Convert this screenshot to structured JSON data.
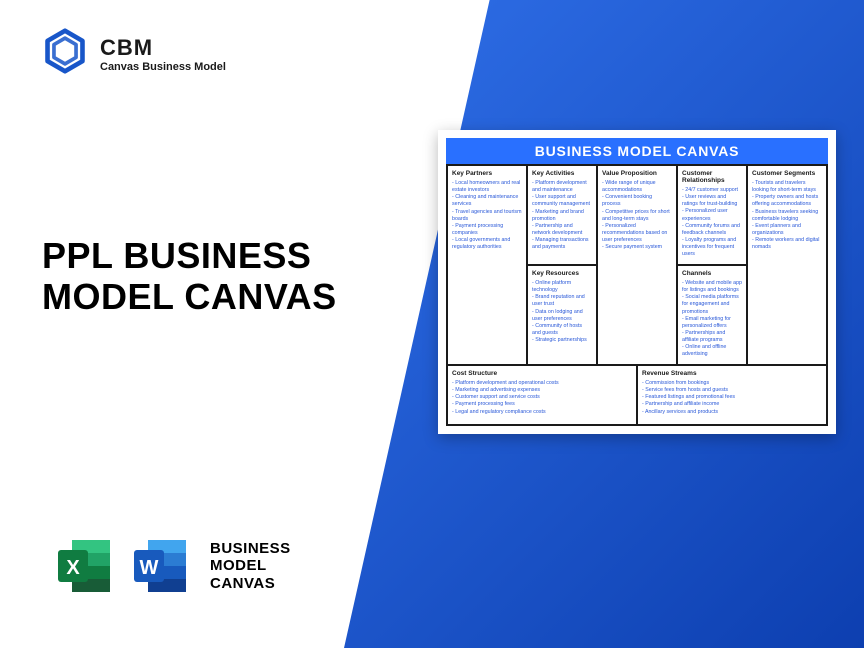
{
  "logo": {
    "title": "CBM",
    "subtitle": "Canvas Business Model"
  },
  "heading": {
    "line1": "PPL BUSINESS",
    "line2": "MODEL CANVAS"
  },
  "bottom_label": {
    "line1": "BUSINESS",
    "line2": "MODEL",
    "line3": "CANVAS"
  },
  "colors": {
    "brand_blue": "#2970ff",
    "link_blue": "#2958d8",
    "excel_dark": "#107c41",
    "excel_light": "#21a366",
    "word_dark": "#185abd",
    "word_light": "#41a5ee",
    "logo_hex": "#1856c9"
  },
  "canvas": {
    "title": "BUSINESS MODEL CANVAS",
    "key_partners": {
      "head": "Key Partners",
      "items": [
        "Local homeowners and real estate investors",
        "Cleaning and maintenance services",
        "Travel agencies and tourism boards",
        "Payment processing companies",
        "Local governments and regulatory authorities"
      ]
    },
    "key_activities": {
      "head": "Key Activities",
      "items": [
        "Platform development and maintenance",
        "User support and community management",
        "Marketing and brand promotion",
        "Partnership and network development",
        "Managing transactions and payments"
      ]
    },
    "key_resources": {
      "head": "Key Resources",
      "items": [
        "Online platform technology",
        "Brand reputation and user trust",
        "Data on lodging and user preferences",
        "Community of hosts and guests",
        "Strategic partnerships"
      ]
    },
    "value_proposition": {
      "head": "Value Proposition",
      "items": [
        "Wide range of unique accommodations",
        "Convenient booking process",
        "Competitive prices for short and long-term stays",
        "Personalized recommendations based on user preferences",
        "Secure payment system"
      ]
    },
    "customer_relationships": {
      "head": "Customer Relationships",
      "items": [
        "24/7 customer support",
        "User reviews and ratings for trust-building",
        "Personalized user experiences",
        "Community forums and feedback channels",
        "Loyalty programs and incentives for frequent users"
      ]
    },
    "channels": {
      "head": "Channels",
      "items": [
        "Website and mobile app for listings and bookings",
        "Social media platforms for engagement and promotions",
        "Email marketing for personalized offers",
        "Partnerships and affiliate programs",
        "Online and offline advertising"
      ]
    },
    "customer_segments": {
      "head": "Customer Segments",
      "items": [
        "Tourists and travelers looking for short-term stays",
        "Property owners and hosts offering accommodations",
        "Business travelers seeking comfortable lodging",
        "Event planners and organizations",
        "Remote workers and digital nomads"
      ]
    },
    "cost_structure": {
      "head": "Cost Structure",
      "items": [
        "Platform development and operational costs",
        "Marketing and advertising expenses",
        "Customer support and service costs",
        "Payment processing fees",
        "Legal and regulatory compliance costs"
      ]
    },
    "revenue_streams": {
      "head": "Revenue Streams",
      "items": [
        "Commission from bookings",
        "Service fees from hosts and guests",
        "Featured listings and promotional fees",
        "Partnership and affiliate income",
        "Ancillary services and products"
      ]
    }
  }
}
